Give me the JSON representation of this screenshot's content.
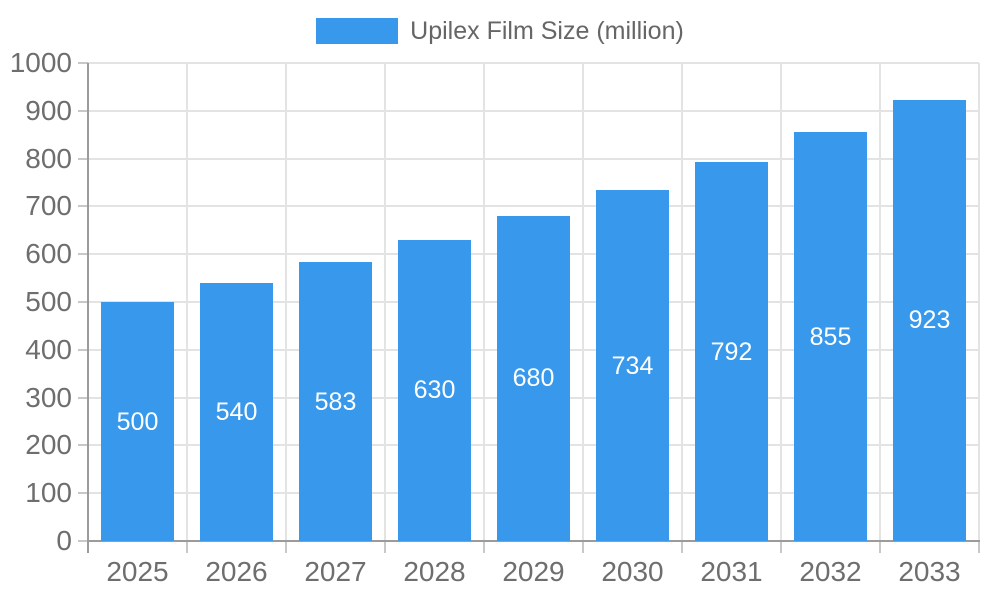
{
  "chart_data": {
    "type": "bar",
    "title": "Upilex Film Size (million)",
    "legend": {
      "label": "Upilex Film Size (million)",
      "position": "top"
    },
    "categories": [
      "2025",
      "2026",
      "2027",
      "2028",
      "2029",
      "2030",
      "2031",
      "2032",
      "2033"
    ],
    "values": [
      500,
      540,
      583,
      630,
      680,
      734,
      792,
      855,
      923
    ],
    "xlabel": "",
    "ylabel": "",
    "ylim": [
      0,
      1000
    ],
    "ytick_step": 100,
    "grid": true,
    "bar_value_labels_visible": true,
    "colors": {
      "bar": "#3898EC",
      "bar_label": "#FFFFFF",
      "grid": "#E3E3E3",
      "axis": "#9B9B9B",
      "tick": "#C8C8C8",
      "tick_label": "#6E6E6E",
      "legend_text": "#666666",
      "background": "#FFFFFF"
    }
  }
}
